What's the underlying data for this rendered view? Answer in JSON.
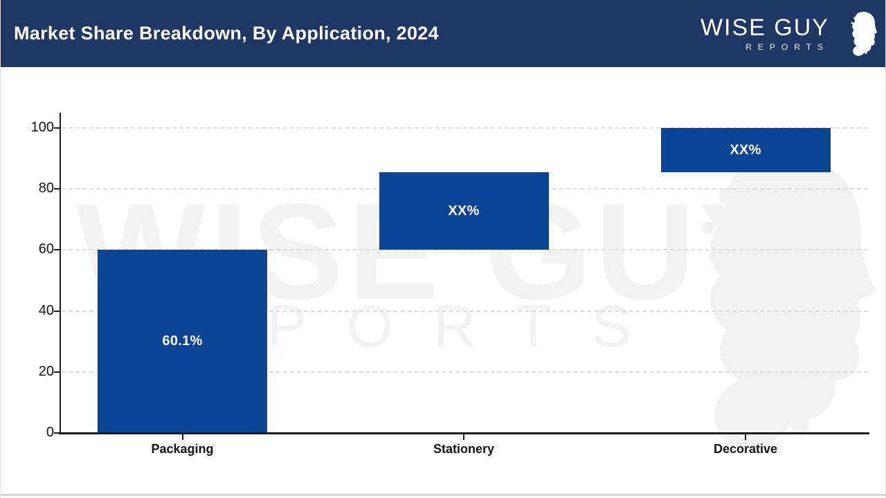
{
  "header": {
    "title": "Market Share Breakdown, By Application, 2024",
    "logo": {
      "name": "WISE GUY",
      "sub": "REPORTS"
    }
  },
  "watermark": {
    "line1": "WISE GUY",
    "line2": "REPORTS"
  },
  "chart_data": {
    "type": "bar",
    "subtype": "floating-waterfall",
    "title": "Market Share Breakdown, By Application, 2024",
    "categories": [
      "Packaging",
      "Stationery",
      "Decorative"
    ],
    "segments": [
      {
        "category": "Packaging",
        "start": 0,
        "end": 60.1,
        "label": "60.1%"
      },
      {
        "category": "Stationery",
        "start": 60.1,
        "end": 85.4,
        "label": "XX%"
      },
      {
        "category": "Decorative",
        "start": 85.4,
        "end": 100,
        "label": "XX%"
      }
    ],
    "xlabel": "",
    "ylabel": "",
    "ylim": [
      0,
      105
    ],
    "yticks": [
      0,
      20,
      40,
      60,
      80,
      100
    ],
    "grid": "horizontal dashed",
    "legend": "none",
    "bar_color": "#0c4496",
    "label_color": "#ffffff",
    "header_color": "#1f3765"
  }
}
